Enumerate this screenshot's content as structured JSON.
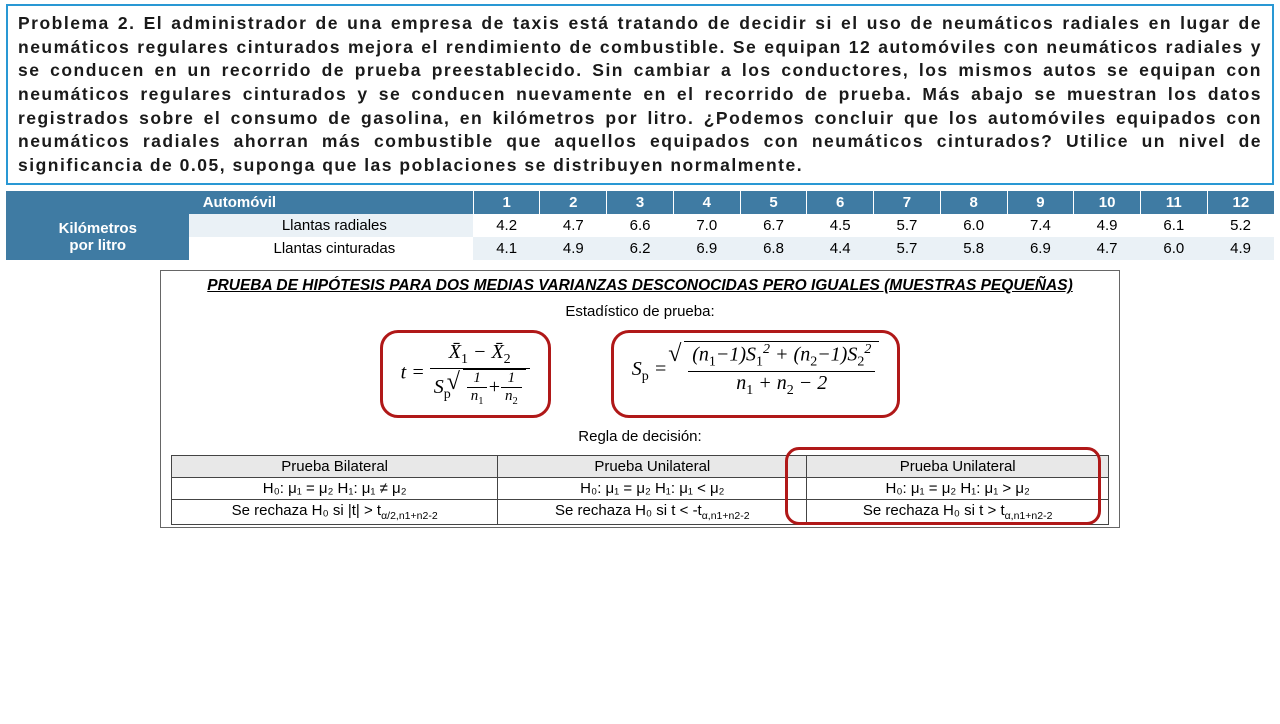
{
  "problem": {
    "title": "Problema 2.",
    "text": "El administrador de una empresa de taxis está tratando de decidir si el uso de neumáticos radiales en lugar de neumáticos regulares cinturados mejora el rendimiento de combustible. Se equipan 12 automóviles con neumáticos radiales y se conducen en un recorrido de prueba preestablecido. Sin cambiar a los conductores, los mismos autos se equipan con neumáticos regulares cinturados y se conducen nuevamente en el recorrido de prueba. Más abajo se muestran los datos registrados sobre el consumo de gasolina, en kilómetros por litro. ¿Podemos concluir que los automóviles equipados con neumáticos radiales ahorran más combustible que aquellos equipados con neumáticos cinturados? Utilice un nivel de significancia de 0.05, suponga que las poblaciones se distribuyen normalmente.",
    "border_color": "#2998d4"
  },
  "dataTable": {
    "header_automovil": "Automóvil",
    "row_group_label_line1": "Kilómetros",
    "row_group_label_line2": "por litro",
    "col_labels": [
      "1",
      "2",
      "3",
      "4",
      "5",
      "6",
      "7",
      "8",
      "9",
      "10",
      "11",
      "12"
    ],
    "row1_label": "Llantas radiales",
    "row2_label": "Llantas cinturadas",
    "row1": [
      "4.2",
      "4.7",
      "6.6",
      "7.0",
      "6.7",
      "4.5",
      "5.7",
      "6.0",
      "7.4",
      "4.9",
      "6.1",
      "5.2"
    ],
    "row2": [
      "4.1",
      "4.9",
      "6.2",
      "6.9",
      "6.8",
      "4.4",
      "5.7",
      "5.8",
      "6.9",
      "4.7",
      "6.0",
      "4.9"
    ],
    "header_bg": "#3f7ba3",
    "header_fg": "#ffffff",
    "row_alt_bg": "#eaf1f6"
  },
  "panel": {
    "title": "PRUEBA DE HIPÓTESIS PARA DOS MEDIAS VARIANZAS DESCONOCIDAS PERO IGUALES (MUESTRAS PEQUEÑAS)",
    "stat_label": "Estadístico de prueba:",
    "rule_label": "Regla de decisión:",
    "highlight_color": "#b01818"
  },
  "decision": {
    "h1": "Prueba Bilateral",
    "h2": "Prueba Unilateral",
    "h3": "Prueba Unilateral",
    "r1c1": "H₀: μ₁ = μ₂    H₁: μ₁ ≠ μ₂",
    "r1c2": "H₀: μ₁ = μ₂    H₁: μ₁ < μ₂",
    "r1c3": "H₀: μ₁ = μ₂    H₁: μ₁ > μ₂",
    "r2c1": "Se rechaza H₀ si |t| > t",
    "r2c1_sub": "α/2,n1+n2-2",
    "r2c2": "Se rechaza H₀ si t < -t",
    "r2c2_sub": "α,n1+n2-2",
    "r2c3": "Se rechaza H₀ si t > t",
    "r2c3_sub": "α,n1+n2-2"
  }
}
